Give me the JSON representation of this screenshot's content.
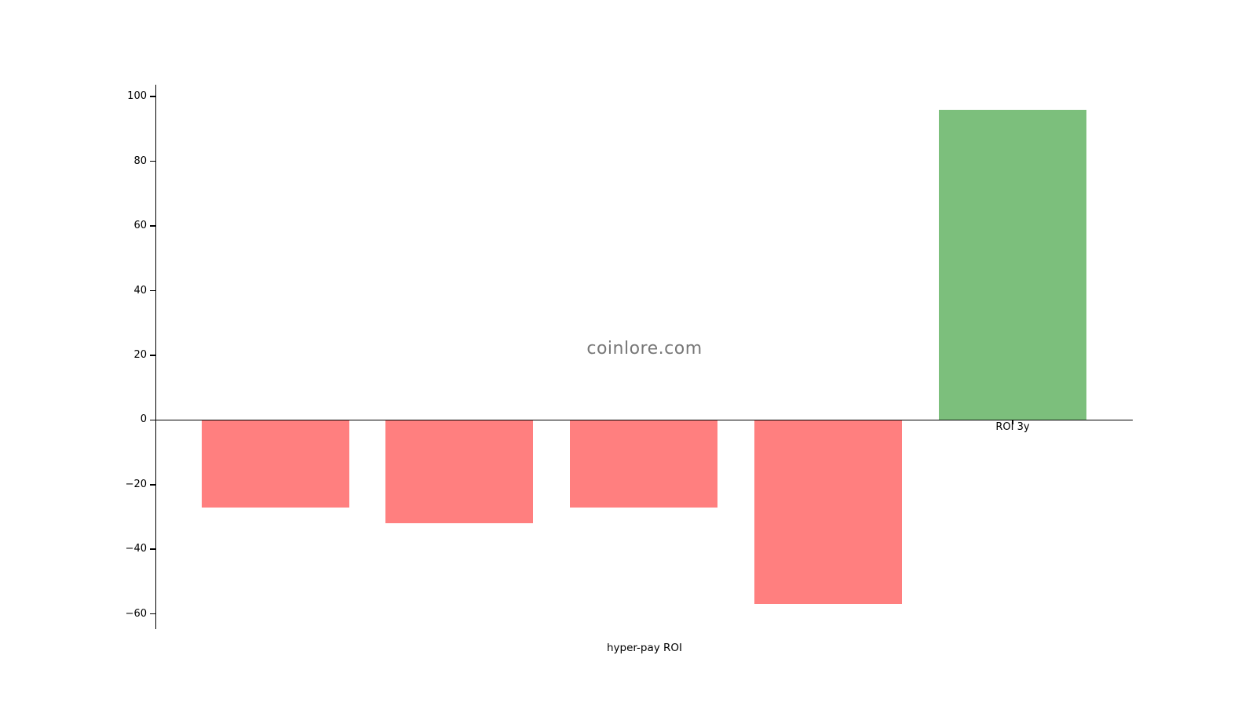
{
  "watermark": "coinlore.com",
  "chart_data": {
    "type": "bar",
    "title": "",
    "xlabel": "hyper-pay ROI",
    "ylabel": "",
    "categories": [
      "",
      "",
      "",
      "",
      "ROI 3y"
    ],
    "values": [
      -27,
      -32,
      -27,
      -57,
      96
    ],
    "series": [
      {
        "name": "hyper-pay ROI",
        "values": [
          -27,
          -32,
          -27,
          -57,
          96
        ]
      }
    ],
    "yticks": [
      100,
      80,
      60,
      40,
      20,
      0,
      -20,
      -40,
      -60
    ],
    "ytick_labels": [
      "100",
      "80",
      "60",
      "40",
      "20",
      "0",
      "−20",
      "−40",
      "−60"
    ],
    "ylim": [
      -64.7,
      103.7
    ],
    "grid": false,
    "legend": null,
    "colors": {
      "negative_bar": "#ff7f7f",
      "positive_bar": "#7cbf7c",
      "axis": "#000000",
      "tick_text": "#000000",
      "watermark": "#777777"
    }
  }
}
